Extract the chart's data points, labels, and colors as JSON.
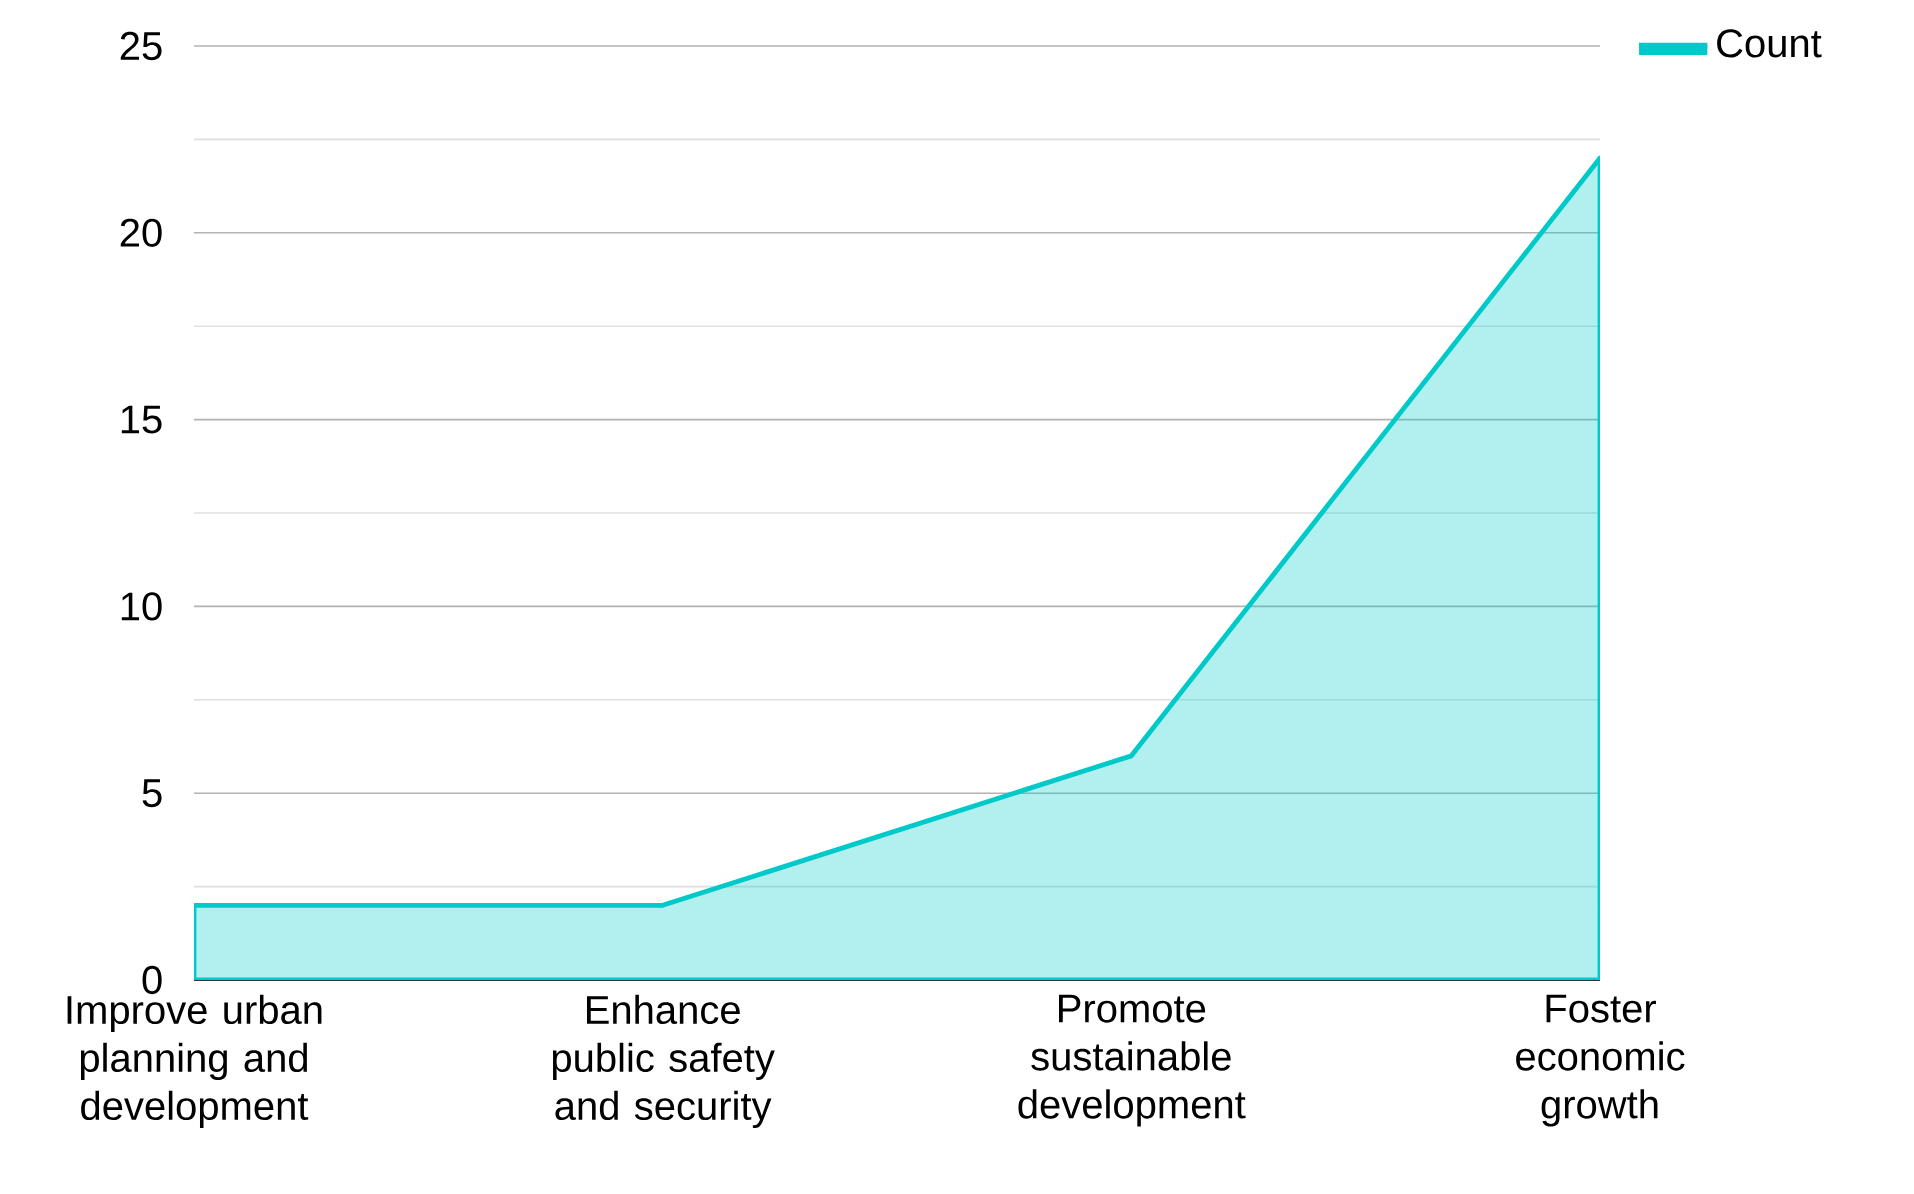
{
  "chart_data": {
    "type": "area",
    "categories": [
      "Improve urban planning and development",
      "Enhance public safety and security",
      "Promote sustainable development",
      "Foster economic growth"
    ],
    "series": [
      {
        "name": "Count",
        "color": "#00c9c9",
        "values": [
          2,
          2,
          6,
          22
        ]
      }
    ],
    "ylim": [
      0,
      25
    ],
    "yticks": [
      0,
      5,
      10,
      15,
      20,
      25
    ],
    "grid": "y",
    "legend": "top right"
  }
}
